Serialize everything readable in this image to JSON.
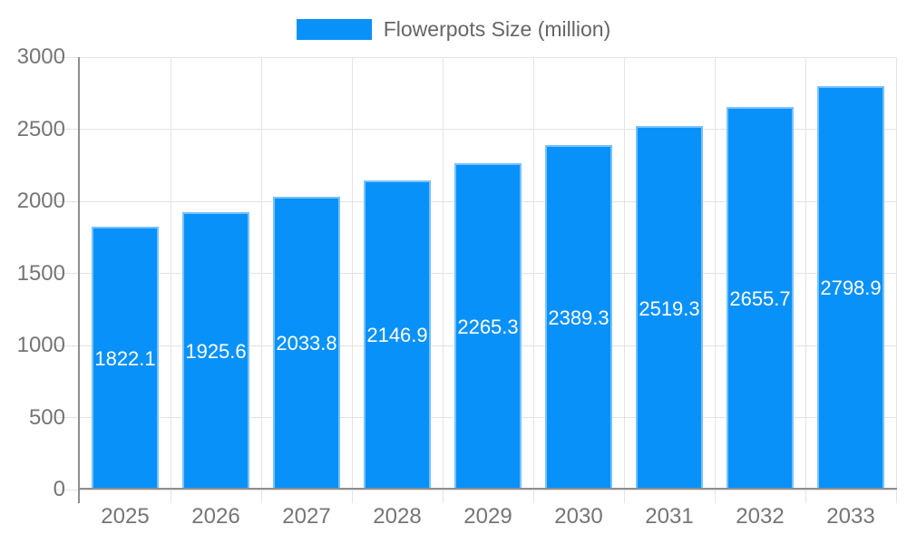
{
  "legend": {
    "label": "Flowerpots Size (million)"
  },
  "chart_data": {
    "type": "bar",
    "title": "Flowerpots Size (million)",
    "categories": [
      "2025",
      "2026",
      "2027",
      "2028",
      "2029",
      "2030",
      "2031",
      "2032",
      "2033"
    ],
    "series": [
      {
        "name": "Flowerpots Size (million)",
        "values": [
          1822.1,
          1925.6,
          2033.8,
          2146.9,
          2265.3,
          2389.3,
          2519.3,
          2655.7,
          2798.9
        ]
      }
    ],
    "value_labels": [
      "1822.1",
      "1925.6",
      "2033.8",
      "2146.9",
      "2265.3",
      "2389.3",
      "2519.3",
      "2655.7",
      "2798.9"
    ],
    "xlabel": "",
    "ylabel": "",
    "ylim": [
      0,
      3000
    ],
    "yticks": [
      0,
      500,
      1000,
      1500,
      2000,
      2500,
      3000
    ],
    "grid": true,
    "legend_position": "top-center",
    "colors": {
      "bar_fill": "#0991fa",
      "bar_edge": "rgba(255,255,255,0.45)",
      "value_label_text": "#ffffff",
      "grid_line": "#e3e3e3",
      "axis_line": "#8e8e8e",
      "tick_label_text": "#757575",
      "legend_text": "#666666",
      "background": "#ffffff"
    }
  }
}
